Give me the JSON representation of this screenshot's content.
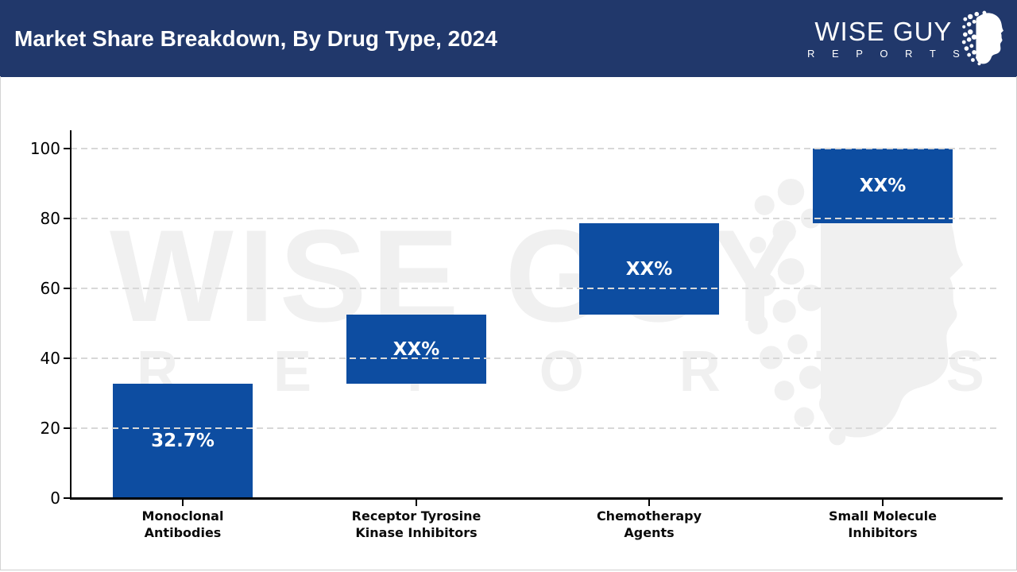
{
  "header": {
    "title": "Market Share Breakdown, By Drug Type, 2024",
    "bg_color": "#21386b",
    "logo": {
      "icon": "dotted-head-profile-icon",
      "name_top": "WISE GUY",
      "name_bottom": "R E P O R T S"
    }
  },
  "watermark": {
    "icon": "dotted-head-profile-icon",
    "text_top": "WISE GUY",
    "text_bottom": "R E P O R T S"
  },
  "chart_data": {
    "type": "bar",
    "subtype": "waterfall",
    "title": "Market Share Breakdown, By Drug Type, 2024",
    "categories": [
      {
        "line1": "Monoclonal",
        "line2": "Antibodies"
      },
      {
        "line1": "Receptor Tyrosine",
        "line2": "Kinase Inhibitors"
      },
      {
        "line1": "Chemotherapy",
        "line2": "Agents"
      },
      {
        "line1": "Small Molecule",
        "line2": "Inhibitors"
      }
    ],
    "segments": [
      {
        "start": 0,
        "end": 32.7,
        "label": "32.7%"
      },
      {
        "start": 32.7,
        "end": 52.5,
        "label": "XX%"
      },
      {
        "start": 52.5,
        "end": 78.6,
        "label": "XX%"
      },
      {
        "start": 78.6,
        "end": 100,
        "label": "XX%"
      }
    ],
    "yticks": [
      "0",
      "20",
      "40",
      "60",
      "80",
      "100"
    ],
    "ylim": [
      0,
      100
    ],
    "xlabel": "",
    "ylabel": "",
    "legend": "none",
    "grid": "horizontal-dashed",
    "colors": {
      "bar": "#0d4da1",
      "bar_label": "#ffffff",
      "grid": "#d8d8d8",
      "axis": "#000000",
      "header_bg": "#21386b",
      "watermark": "#f0f0f0"
    }
  }
}
